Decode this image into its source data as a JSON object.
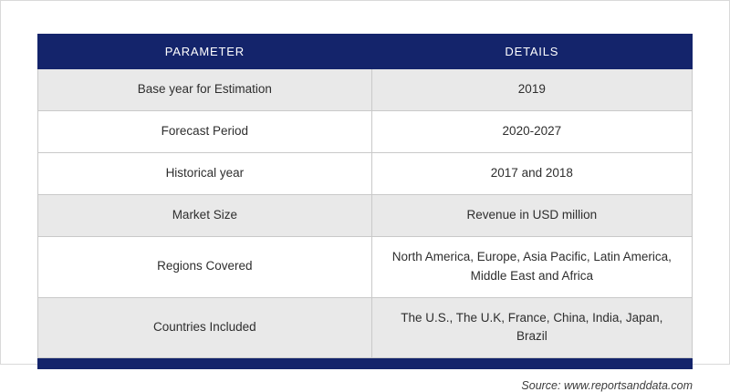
{
  "table": {
    "header": {
      "parameter": "PARAMETER",
      "details": "DETAILS"
    },
    "rows": [
      {
        "parameter": "Base year for Estimation",
        "details": "2019"
      },
      {
        "parameter": "Forecast Period",
        "details": "2020-2027"
      },
      {
        "parameter": "Historical year",
        "details": "2017 and 2018"
      },
      {
        "parameter": "Market Size",
        "details": "Revenue in USD million"
      },
      {
        "parameter": "Regions Covered",
        "details": "North America, Europe, Asia Pacific, Latin America, Middle East and Africa"
      },
      {
        "parameter": "Countries Included",
        "details": "The U.S., The  U.K, France, China, India, Japan, Brazil"
      }
    ]
  },
  "source": "Source: www.reportsanddata.com",
  "colors": {
    "header_bg": "#14246b",
    "alt_row_bg": "#e9e9e9",
    "border": "#c9c9c9"
  }
}
